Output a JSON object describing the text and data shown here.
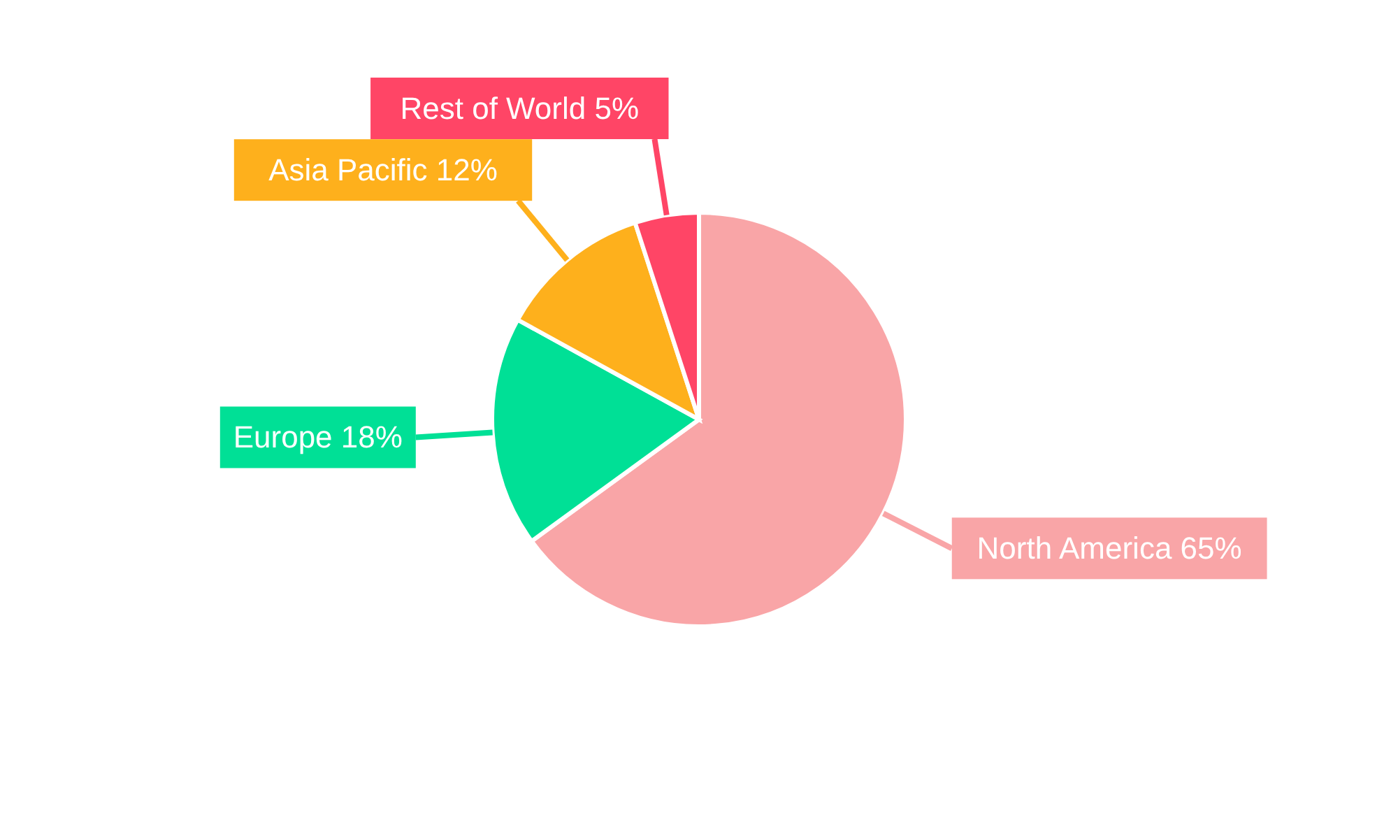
{
  "chart_data": {
    "type": "pie",
    "categories": [
      "North America",
      "Europe",
      "Asia Pacific",
      "Rest of World"
    ],
    "values": [
      65,
      18,
      12,
      5
    ],
    "value_labels": [
      "65%",
      "18%",
      "12%",
      "5%"
    ],
    "colors": [
      "#f9a5a7",
      "#00e096",
      "#feb01c",
      "#ff4566"
    ],
    "legend": false
  }
}
